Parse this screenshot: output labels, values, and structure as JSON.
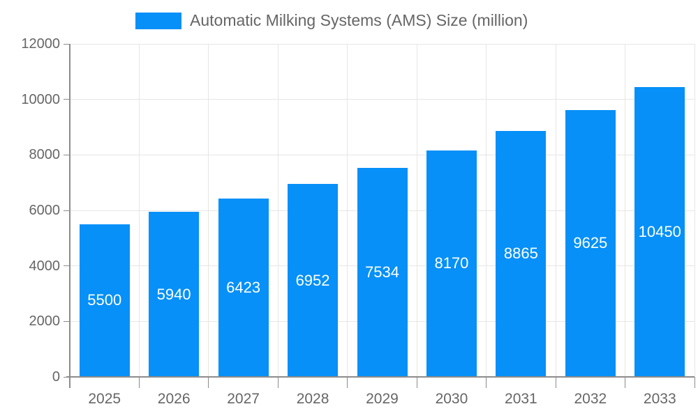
{
  "legend": {
    "label": "Automatic Milking Systems (AMS) Size (million)",
    "swatch_color": "#0690f8"
  },
  "chart_data": {
    "type": "bar",
    "title": "Automatic Milking Systems (AMS) Size (million)",
    "categories": [
      "2025",
      "2026",
      "2027",
      "2028",
      "2029",
      "2030",
      "2031",
      "2032",
      "2033"
    ],
    "values": [
      5500,
      5940,
      6423,
      6952,
      7534,
      8170,
      8865,
      9625,
      10450
    ],
    "value_labels": [
      "5500",
      "5940",
      "6423",
      "6952",
      "7534",
      "8170",
      "8865",
      "9625",
      "10450"
    ],
    "ytick_labels": [
      "0",
      "2000",
      "4000",
      "6000",
      "8000",
      "10000",
      "12000"
    ],
    "yticks": [
      0,
      2000,
      4000,
      6000,
      8000,
      10000,
      12000
    ],
    "ylim": [
      0,
      12000
    ],
    "xlabel": "",
    "ylabel": "",
    "grid": true,
    "legend_position": "top",
    "bar_color": "#0690f8",
    "value_label_color": "#ffffff",
    "axis_color": "#8c8c8c",
    "grid_color": "#e6e6e6",
    "tick_text_color": "#666666"
  }
}
